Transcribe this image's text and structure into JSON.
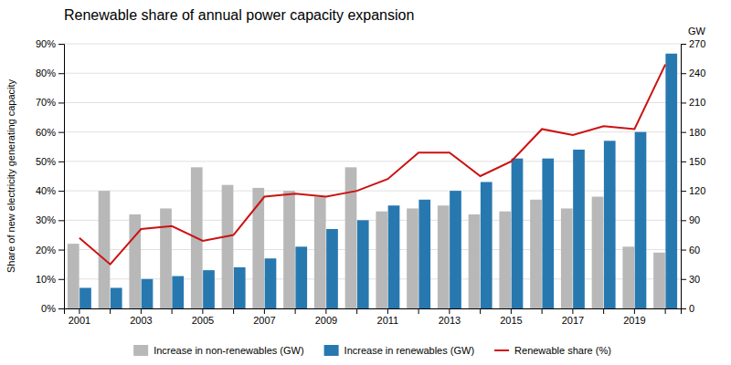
{
  "chart_data": {
    "type": "bar",
    "title": "Renewable share of annual power capacity expansion",
    "categories": [
      "2001",
      null,
      "2003",
      null,
      "2005",
      null,
      "2007",
      null,
      "2009",
      null,
      "2011",
      null,
      "2013",
      null,
      "2015",
      null,
      "2017",
      null,
      "2019",
      null
    ],
    "series": [
      {
        "name": "Increase in non-renewables (GW)",
        "type": "bar",
        "axis": "y2",
        "color": "#b8b8b8",
        "values": [
          66,
          120,
          96,
          102,
          144,
          126,
          123,
          120,
          114,
          144,
          99,
          102,
          105,
          96,
          99,
          111,
          102,
          114,
          63,
          57
        ]
      },
      {
        "name": "Increase in renewables (GW)",
        "type": "bar",
        "axis": "y2",
        "color": "#2878b0",
        "values": [
          21,
          21,
          30,
          33,
          39,
          42,
          51,
          63,
          81,
          90,
          105,
          111,
          120,
          129,
          153,
          153,
          162,
          171,
          180,
          260
        ]
      },
      {
        "name": "Renewable share (%)",
        "type": "line",
        "color": "#cc1111",
        "values": [
          24,
          15,
          27,
          28,
          23,
          25,
          38,
          39,
          38,
          40,
          44,
          53,
          53,
          45,
          50,
          61,
          59,
          62,
          61,
          83
        ]
      }
    ],
    "ylabel": "Share of new electricity generating capacity",
    "y2label": "GW",
    "ylim": [
      0,
      90
    ],
    "yticks": [
      {
        "value": 0,
        "label": "0%"
      },
      {
        "value": 10,
        "label": "10%"
      },
      {
        "value": 20,
        "label": "20%"
      },
      {
        "value": 30,
        "label": "30%"
      },
      {
        "value": 40,
        "label": "40%"
      },
      {
        "value": 50,
        "label": "50%"
      },
      {
        "value": 60,
        "label": "60%"
      },
      {
        "value": 70,
        "label": "70%"
      },
      {
        "value": 80,
        "label": "80%"
      },
      {
        "value": 90,
        "label": "90%"
      }
    ],
    "y2lim": [
      0,
      270
    ],
    "y2ticks": [
      0,
      30,
      60,
      90,
      120,
      150,
      180,
      210,
      240,
      270
    ],
    "grid": true,
    "legend": "bottom"
  }
}
